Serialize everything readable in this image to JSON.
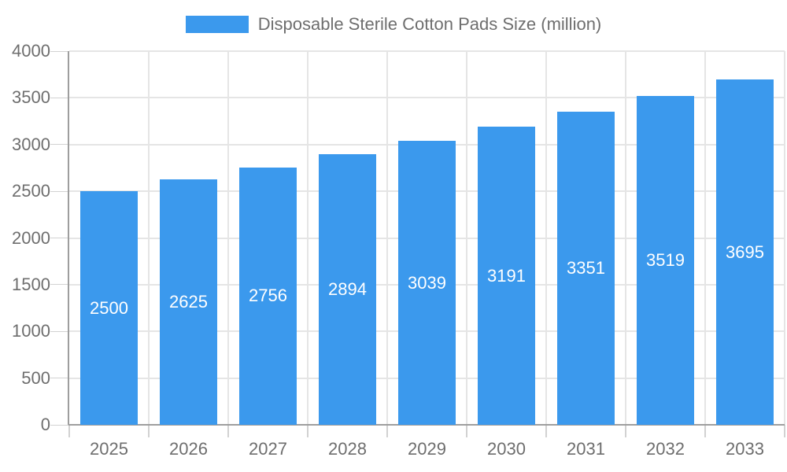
{
  "legend": {
    "series_label": "Disposable Sterile Cotton Pads Size (million)"
  },
  "chart_data": {
    "type": "bar",
    "title": "Disposable Sterile Cotton Pads Size (million)",
    "categories": [
      "2025",
      "2026",
      "2027",
      "2028",
      "2029",
      "2030",
      "2031",
      "2032",
      "2033"
    ],
    "values": [
      2500,
      2625,
      2756,
      2894,
      3039,
      3191,
      3351,
      3519,
      3695
    ],
    "xlabel": "",
    "ylabel": "",
    "ylim": [
      0,
      4000
    ],
    "yticks": [
      0,
      500,
      1000,
      1500,
      2000,
      2500,
      3000,
      3500,
      4000
    ],
    "grid": true,
    "legend_position": "top",
    "bar_labels_inside": true
  },
  "colors": {
    "bar": "#3b99ed",
    "bar_label": "#ffffff",
    "axis_text": "#6e6e6e",
    "grid_line": "#e5e5e5",
    "tick_line": "#d2d2d2",
    "axis_line": "#9e9e9e",
    "background": "#ffffff"
  }
}
